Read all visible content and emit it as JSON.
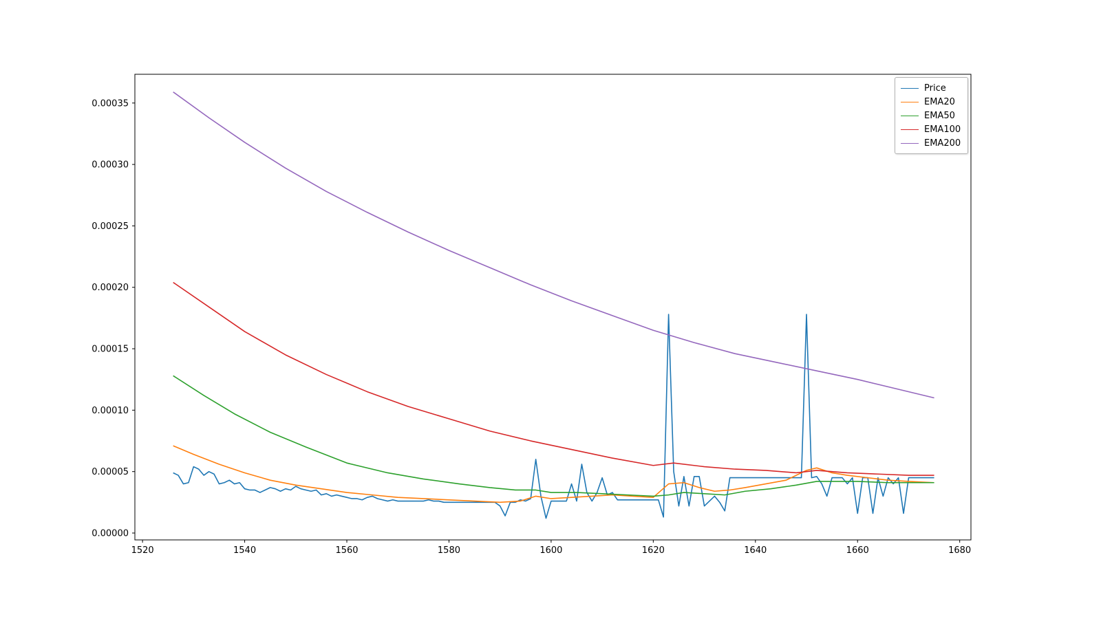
{
  "figure": {
    "background": "#ffffff",
    "axes_face": "#ffffff",
    "spine_color": "#000000",
    "tick_color": "#000000",
    "label_color": "#000000"
  },
  "chart_data": {
    "type": "line",
    "title": "",
    "xlabel": "",
    "ylabel": "",
    "grid": false,
    "legend_position": "upper right",
    "xlim": [
      1518.5,
      1682.2
    ],
    "ylim": [
      -5.6e-06,
      0.0003734
    ],
    "y_scale": 1e-06,
    "xaxis": {
      "tick_values": [
        1520,
        1540,
        1560,
        1580,
        1600,
        1620,
        1640,
        1660,
        1680
      ],
      "tick_labels": [
        "1520",
        "1540",
        "1560",
        "1580",
        "1600",
        "1620",
        "1640",
        "1660",
        "1680"
      ]
    },
    "yaxis": {
      "tick_values": [
        0,
        5e-05,
        0.0001,
        0.00015,
        0.0002,
        0.00025,
        0.0003,
        0.00035
      ],
      "tick_labels": [
        "0.00000",
        "0.00005",
        "0.00010",
        "0.00015",
        "0.00020",
        "0.00025",
        "0.00030",
        "0.00035"
      ]
    },
    "series": [
      {
        "name": "Price",
        "color": "#1f77b4",
        "x0": 1526,
        "x_step": 1,
        "values": [
          49,
          47,
          40,
          41,
          54,
          52,
          47,
          50,
          48,
          40,
          41,
          43,
          40,
          41,
          36,
          35,
          35,
          33,
          35,
          37,
          36,
          34,
          36,
          35,
          38,
          36,
          35,
          34,
          35,
          31,
          32,
          30,
          31,
          30,
          29,
          28,
          28,
          27,
          29,
          30,
          28,
          27,
          26,
          27,
          26,
          26,
          26,
          26,
          26,
          26,
          27,
          26,
          26,
          25,
          25,
          25,
          25,
          25,
          25,
          25,
          25,
          25,
          25,
          25,
          22,
          14,
          25,
          25,
          27,
          26,
          28,
          60,
          30,
          12,
          26,
          26,
          26,
          26,
          40,
          26,
          56,
          33,
          26,
          33,
          45,
          31,
          33,
          27,
          27,
          27,
          27,
          27,
          27,
          27,
          27,
          27,
          13,
          178,
          50,
          22,
          46,
          22,
          46,
          46,
          22,
          26,
          30,
          25,
          18,
          45,
          45,
          45,
          45,
          45,
          45,
          45,
          45,
          45,
          45,
          45,
          45,
          45,
          45,
          45,
          178,
          45,
          46,
          40,
          30,
          45,
          45,
          45,
          40,
          45,
          16,
          45,
          45,
          16,
          45,
          30,
          45,
          40,
          45,
          16,
          45,
          45,
          45,
          45,
          45,
          45
        ]
      },
      {
        "name": "EMA20",
        "color": "#ff7f0e",
        "x": [
          1526,
          1530,
          1535,
          1540,
          1545,
          1550,
          1555,
          1560,
          1565,
          1570,
          1575,
          1580,
          1585,
          1590,
          1594,
          1597,
          1600,
          1604,
          1608,
          1612,
          1616,
          1620,
          1623,
          1626,
          1629,
          1632,
          1635,
          1638,
          1642,
          1646,
          1650,
          1652,
          1655,
          1658,
          1662,
          1666,
          1670,
          1675
        ],
        "values": [
          71,
          64,
          56,
          49,
          43,
          39,
          36,
          33,
          31,
          29,
          28,
          27,
          26,
          25,
          26,
          30,
          28,
          29,
          30,
          31,
          30,
          29,
          40,
          41,
          37,
          34,
          35,
          37,
          40,
          43,
          51,
          53,
          49,
          47,
          45,
          43,
          42,
          41
        ]
      },
      {
        "name": "EMA50",
        "color": "#2ca02c",
        "x": [
          1526,
          1532,
          1538,
          1545,
          1552,
          1560,
          1568,
          1575,
          1582,
          1588,
          1593,
          1597,
          1600,
          1605,
          1610,
          1615,
          1620,
          1623,
          1626,
          1630,
          1634,
          1638,
          1643,
          1648,
          1652,
          1656,
          1660,
          1666,
          1675
        ],
        "values": [
          128,
          112,
          97,
          82,
          70,
          57,
          49,
          44,
          40,
          37,
          35,
          35,
          33,
          33,
          32,
          31,
          30,
          31,
          33,
          32,
          31,
          34,
          36,
          39,
          42,
          42,
          42,
          41,
          41
        ]
      },
      {
        "name": "EMA100",
        "color": "#d62728",
        "x": [
          1526,
          1533,
          1540,
          1548,
          1556,
          1564,
          1572,
          1580,
          1588,
          1596,
          1604,
          1612,
          1620,
          1624,
          1630,
          1636,
          1642,
          1648,
          1652,
          1658,
          1664,
          1670,
          1675
        ],
        "values": [
          204,
          184,
          164,
          145,
          129,
          115,
          103,
          93,
          83,
          75,
          68,
          61,
          55,
          57,
          54,
          52,
          51,
          49,
          51,
          49,
          48,
          47,
          47
        ]
      },
      {
        "name": "EMA200",
        "color": "#9467bd",
        "x": [
          1526,
          1533,
          1540,
          1548,
          1556,
          1564,
          1572,
          1580,
          1588,
          1596,
          1604,
          1612,
          1620,
          1628,
          1636,
          1644,
          1652,
          1660,
          1668,
          1675
        ],
        "values": [
          359,
          338,
          318,
          297,
          278,
          261,
          245,
          230,
          216,
          202,
          189,
          177,
          165,
          155,
          146,
          139,
          132,
          125,
          117,
          110
        ]
      }
    ]
  }
}
